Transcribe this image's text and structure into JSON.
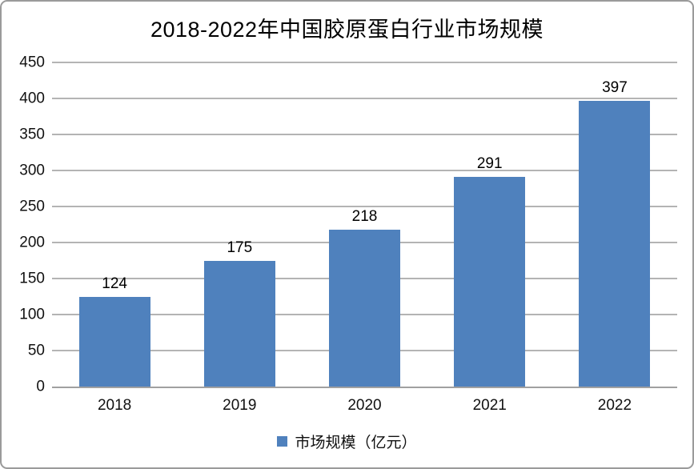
{
  "chart_data": {
    "type": "bar",
    "title": "2018-2022年中国胶原蛋白行业市场规模",
    "categories": [
      "2018",
      "2019",
      "2020",
      "2021",
      "2022"
    ],
    "series": [
      {
        "name": "市场规模（亿元）",
        "values": [
          124,
          175,
          218,
          291,
          397
        ]
      }
    ],
    "data_labels_shown": true,
    "xlabel": "",
    "ylabel": "",
    "ylim": [
      0,
      450
    ],
    "yticks": [
      0,
      50,
      100,
      150,
      200,
      250,
      300,
      350,
      400,
      450
    ],
    "grid": "horizontal",
    "legend_position": "bottom",
    "legend_label": "市场规模（亿元）",
    "colors": {
      "bar": "#4F81BD",
      "gridline": "#b4b4b4",
      "axis_line": "#a0a0a0",
      "frame_border": "#9a9a9a",
      "text": "#000000",
      "background": "#ffffff"
    }
  }
}
